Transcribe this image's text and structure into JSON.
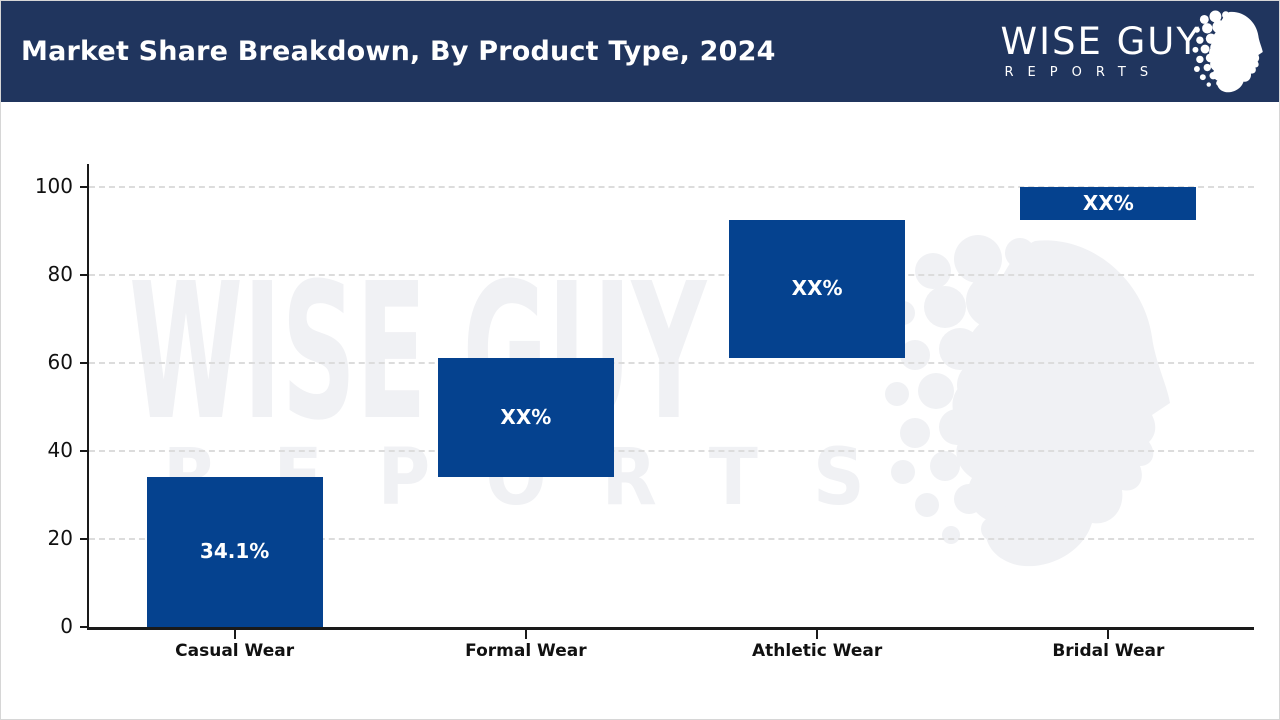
{
  "header": {
    "title": "Market Share Breakdown, By Product Type, 2024",
    "bg_color": "#20355e",
    "logo": {
      "line1": "WISE GUY",
      "line2": "REPORTS"
    }
  },
  "watermark": {
    "line1": "WISE GUY",
    "line2": "REPORTS",
    "color": "#f0f1f4"
  },
  "chart_data": {
    "type": "bar",
    "subtype": "waterfall",
    "title": "Market Share Breakdown, By Product Type, 2024",
    "categories": [
      "Casual Wear",
      "Formal Wear",
      "Athletic Wear",
      "Bridal Wear"
    ],
    "segments": [
      {
        "category": "Casual Wear",
        "start": 0,
        "end": 34.1,
        "label": "34.1%"
      },
      {
        "category": "Formal Wear",
        "start": 34.1,
        "end": 61.1,
        "label": "XX%"
      },
      {
        "category": "Athletic Wear",
        "start": 61.1,
        "end": 92.4,
        "label": "XX%"
      },
      {
        "category": "Bridal Wear",
        "start": 92.4,
        "end": 100,
        "label": "XX%"
      }
    ],
    "ylim": [
      0,
      100
    ],
    "yticks": [
      0,
      20,
      40,
      60,
      80,
      100
    ],
    "bar_color": "#05428f",
    "grid": "horizontal-dashed",
    "legend": "none",
    "xlabel": "",
    "ylabel": ""
  }
}
